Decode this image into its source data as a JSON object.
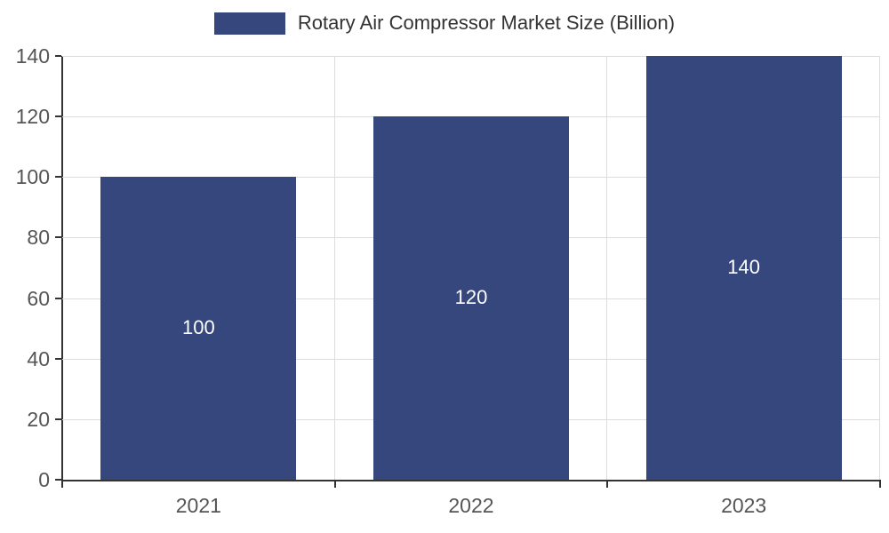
{
  "chart_data": {
    "type": "bar",
    "title": "Rotary Air Compressor Market Size (Billion)",
    "categories": [
      "2021",
      "2022",
      "2023"
    ],
    "values": [
      100,
      120,
      140
    ],
    "xlabel": "",
    "ylabel": "",
    "ylim": [
      0,
      140
    ],
    "yticks": [
      0,
      20,
      40,
      60,
      80,
      100,
      120,
      140
    ],
    "bar_color": "#36477E",
    "grid": true,
    "legend_position": "top",
    "value_label_color": "#ffffff",
    "axis_color": "#333333",
    "grid_color": "#dddddd",
    "tick_label_color": "#555555"
  }
}
